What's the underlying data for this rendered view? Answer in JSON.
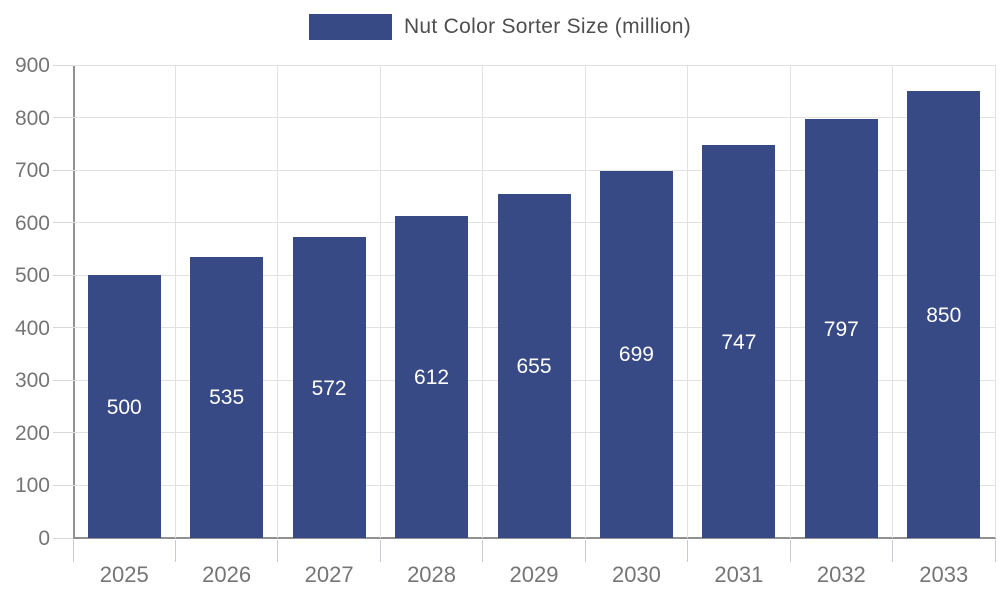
{
  "chart": {
    "legend": {
      "label": "Nut Color Sorter Size (million)"
    },
    "colors": {
      "bar": "#384a85",
      "bar_label": "#ffffff",
      "axis_line": "#919191",
      "grid_line": "#e2e2e2",
      "tick_label": "#757575",
      "legend_text": "#4f4f4f",
      "background": "#ffffff"
    }
  },
  "chart_data": {
    "type": "bar",
    "title": "Nut Color Sorter Size (million)",
    "categories": [
      "2025",
      "2026",
      "2027",
      "2028",
      "2029",
      "2030",
      "2031",
      "2032",
      "2033"
    ],
    "series": [
      {
        "name": "Nut Color Sorter Size (million)",
        "values": [
          500,
          535,
          572,
          612,
          655,
          699,
          747,
          797,
          850
        ]
      }
    ],
    "xlabel": "",
    "ylabel": "",
    "ylim": [
      0,
      900
    ],
    "yticks": [
      0,
      100,
      200,
      300,
      400,
      500,
      600,
      700,
      800,
      900
    ],
    "grid": true,
    "legend_position": "top",
    "bar_labels": "inside-middle"
  }
}
